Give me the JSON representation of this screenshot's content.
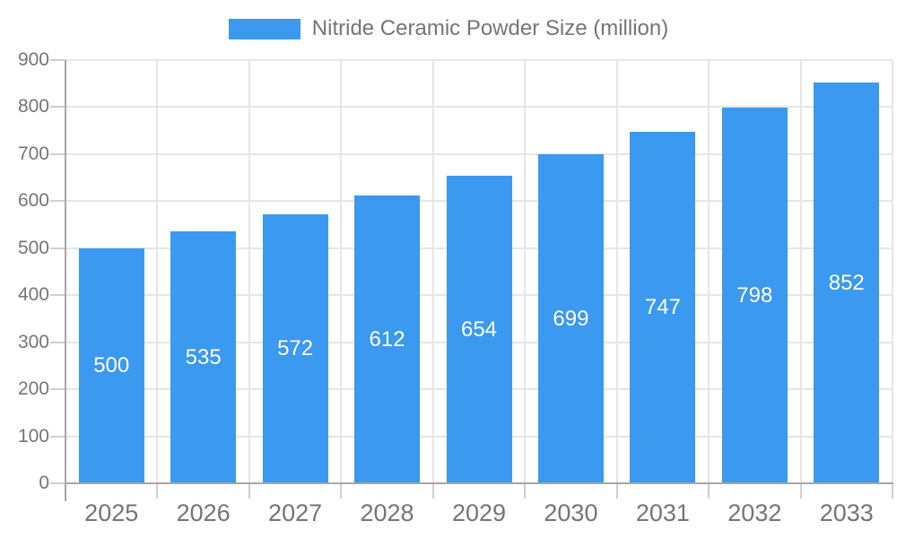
{
  "chart_data": {
    "type": "bar",
    "title": "Nitride Ceramic Powder Size (million)",
    "categories": [
      "2025",
      "2026",
      "2027",
      "2028",
      "2029",
      "2030",
      "2031",
      "2032",
      "2033"
    ],
    "values": [
      500,
      535,
      572,
      612,
      654,
      699,
      747,
      798,
      852
    ],
    "xlabel": "",
    "ylabel": "",
    "ylim": [
      0,
      900
    ],
    "yticks": [
      0,
      100,
      200,
      300,
      400,
      500,
      600,
      700,
      800,
      900
    ],
    "grid": true,
    "legend_position": "top-center",
    "bar_labels_inside": true,
    "colors": {
      "bar": "#3B99EF",
      "bar_label": "#FFFFFF",
      "axis_text": "#757575",
      "legend_text": "#757575",
      "gridline": "#E6E6E6",
      "axis_line": "#A6A6A6",
      "tick": "#CFCFCF",
      "background": "#FFFFFF"
    }
  }
}
